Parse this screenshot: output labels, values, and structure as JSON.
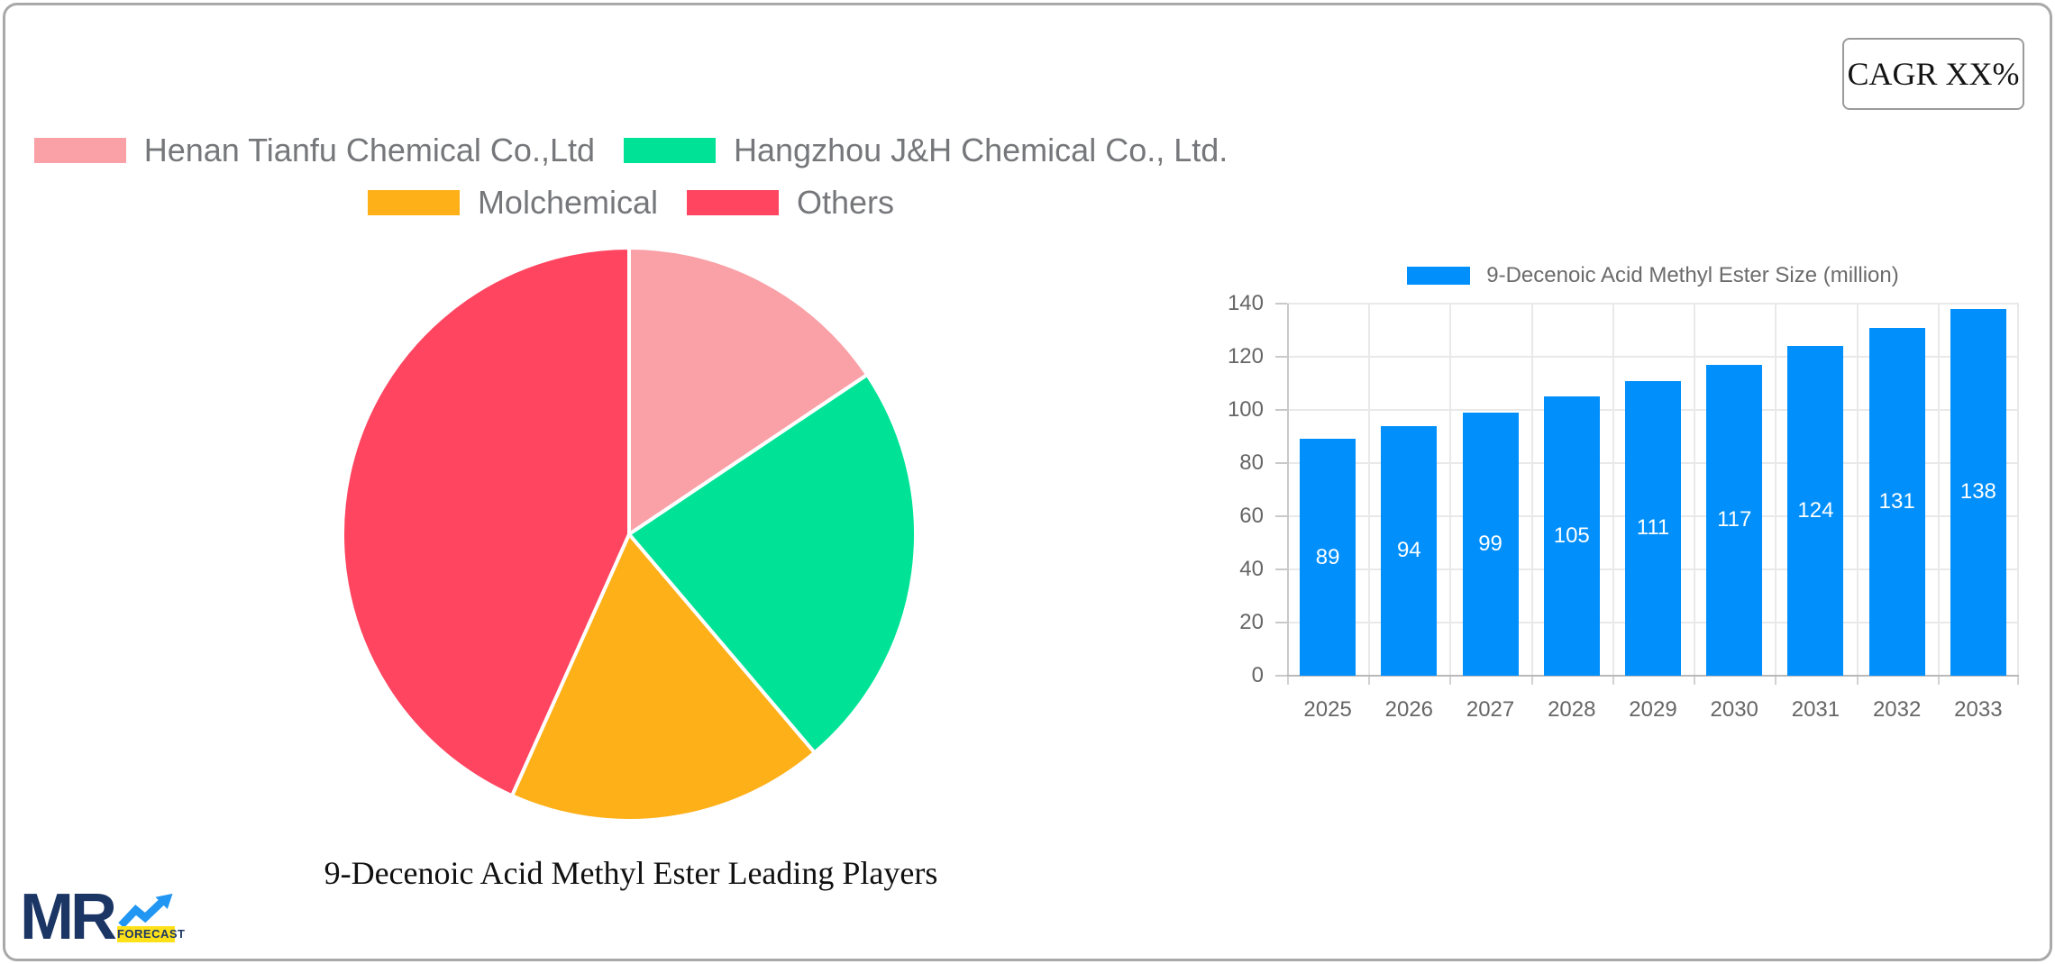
{
  "cagr_box": {
    "label": "CAGR XX%"
  },
  "chart_data": [
    {
      "type": "pie",
      "title": "9-Decenoic Acid Methyl Ester Leading Players",
      "labels": [
        "Henan Tianfu Chemical Co.,Ltd",
        "Hangzhou J&H Chemical Co., Ltd.",
        "Molchemical",
        "Others"
      ],
      "values_pct_estimated": [
        15.6,
        23.2,
        17.9,
        43.3
      ],
      "colors": [
        "#F9A1A7",
        "#00E396",
        "#FEB019",
        "#FF4560"
      ],
      "start_angle_deg": 0,
      "rotation": "clockwise",
      "slice_border_color": "#ffffff",
      "legend_position": "top",
      "legend_rows": [
        [
          0,
          1
        ],
        [
          2,
          3
        ]
      ]
    },
    {
      "type": "bar",
      "legend_label": "9-Decenoic Acid Methyl Ester Size (million)",
      "categories": [
        "2025",
        "2026",
        "2027",
        "2028",
        "2029",
        "2030",
        "2031",
        "2032",
        "2033"
      ],
      "values": [
        89,
        94,
        99,
        105,
        111,
        117,
        124,
        131,
        138
      ],
      "bar_color": "#008FFB",
      "value_label_color": "#ffffff",
      "ylim": [
        0,
        140
      ],
      "ytick_step": 20,
      "grid": true,
      "legend_position": "top"
    }
  ],
  "logo": {
    "mr_text": "MR",
    "forecast_text": "FORECAST",
    "navy": "#1B3665",
    "blue": "#2196F3",
    "yellow": "#FFE11A"
  }
}
